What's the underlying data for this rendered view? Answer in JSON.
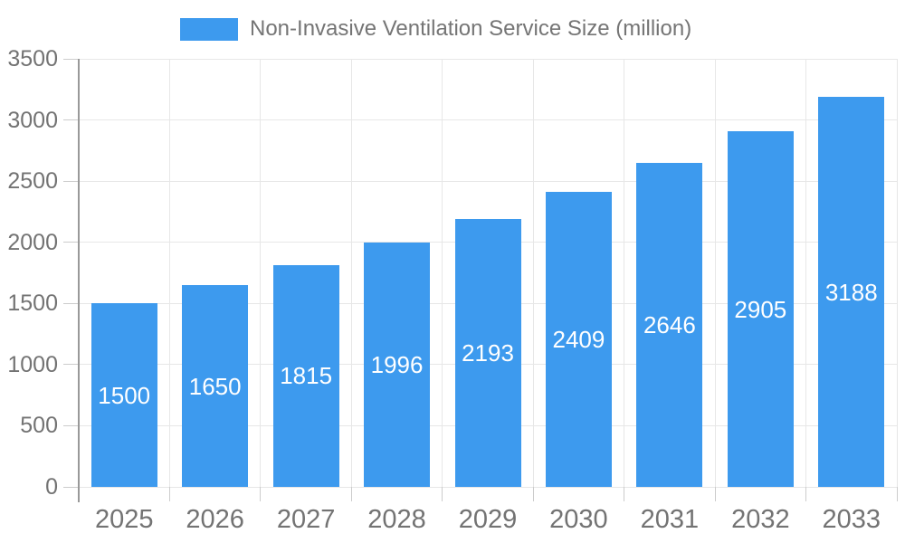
{
  "legend": {
    "label": "Non-Invasive Ventilation Service Size (million)"
  },
  "colors": {
    "bar": "#3d9aee",
    "bar_label": "#ffffff",
    "axis_label": "#737373",
    "legend_label": "#757575",
    "grid_line": "#e7e7e7",
    "tick_line": "#cccccc",
    "axis_line": "#999999",
    "background": "#ffffff"
  },
  "chart_data": {
    "type": "bar",
    "title": "Non-Invasive Ventilation Service Size (million)",
    "categories": [
      "2025",
      "2026",
      "2027",
      "2028",
      "2029",
      "2030",
      "2031",
      "2032",
      "2033"
    ],
    "series": [
      {
        "name": "Non-Invasive Ventilation Service Size (million)",
        "values": [
          1500,
          1650,
          1815,
          1996,
          2193,
          2409,
          2646,
          2905,
          3188
        ]
      }
    ],
    "xlabel": "",
    "ylabel": "",
    "ylim": [
      0,
      3500
    ],
    "y_ticks": [
      0,
      500,
      1000,
      1500,
      2000,
      2500,
      3000,
      3500
    ],
    "grid": true,
    "legend_position": "top-center",
    "bar_value_labels": true
  }
}
